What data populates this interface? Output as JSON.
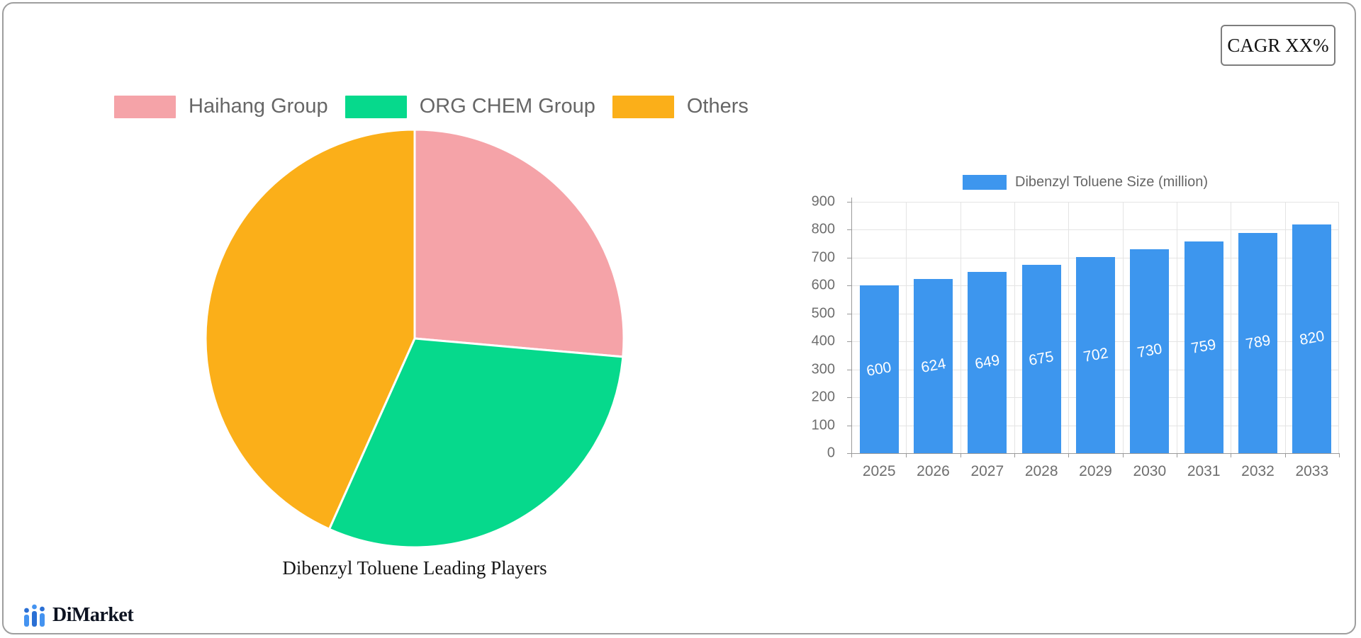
{
  "cagr_box": {
    "label": "CAGR XX%"
  },
  "logo": {
    "text": "DiMarket",
    "icon": "bar-chart-logo-icon",
    "icon_colors": {
      "bars": "#4493f0",
      "dots": "#2a6fd4"
    }
  },
  "colors": {
    "pie_pink": "#F5A3A8",
    "pie_green": "#06D98C",
    "pie_orange": "#FBAF19",
    "bar_blue": "#3D96EE",
    "legend_text": "#666666",
    "axis_text": "#6e6e6e"
  },
  "chart_data": [
    {
      "type": "pie",
      "title": "Dibenzyl Toluene Leading Players",
      "labels": [
        "Haihang Group",
        "ORG CHEM Group",
        "Others"
      ],
      "values_percent": [
        26.4,
        30.3,
        43.3
      ],
      "colors": [
        "#F5A3A8",
        "#06D98C",
        "#FBAF19"
      ],
      "start_angle_deg": 0,
      "direction": "clockwise",
      "legend_position": "top",
      "slice_border_color": "#ffffff"
    },
    {
      "type": "bar",
      "title": "Dibenzyl Toluene Size (million)",
      "categories": [
        "2025",
        "2026",
        "2027",
        "2028",
        "2029",
        "2030",
        "2031",
        "2032",
        "2033"
      ],
      "values": [
        600,
        624,
        649,
        675,
        702,
        730,
        759,
        789,
        820
      ],
      "ylim": [
        0,
        900
      ],
      "ytick_interval": 100,
      "grid": true,
      "legend_position": "top",
      "bar_color": "#3D96EE",
      "value_label_color": "#ffffff"
    }
  ]
}
